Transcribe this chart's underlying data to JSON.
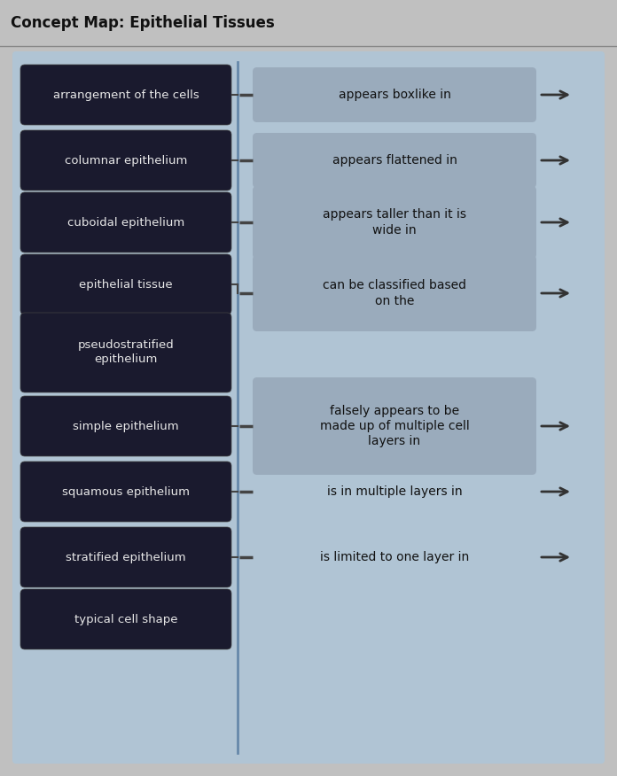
{
  "title": "Concept Map: Epithelial Tissues",
  "title_fontsize": 12,
  "title_fontweight": "bold",
  "bg_outer": "#c0c0c0",
  "bg_inner": "#b0c4d4",
  "left_box_bg_dark": "#1a1a2e",
  "left_box_bg_mid": "#2a3a4a",
  "left_box_text": "#e8e8e8",
  "right_box_bg": "#9aabbc",
  "right_box_text": "#111111",
  "connector_color": "#444444",
  "arrow_color": "#333333",
  "divider_color": "#6688aa",
  "left_items": [
    "arrangement of the cells",
    "columnar epithelium",
    "cuboidal epithelium",
    "epithelial tissue",
    "pseudostratified\nepithelium",
    "simple epithelium",
    "squamous epithelium",
    "stratified epithelium",
    "typical cell shape"
  ],
  "left_item_two_line": [
    false,
    false,
    false,
    false,
    true,
    false,
    false,
    false,
    false
  ],
  "right_items": [
    "appears boxlike in",
    "appears flattened in",
    "appears taller than it is\nwide in",
    "can be classified based\non the",
    "falsely appears to be\nmade up of multiple cell\nlayers in",
    "is in multiple layers in",
    "is limited to one layer in"
  ],
  "right_has_box": [
    true,
    true,
    true,
    true,
    true,
    false,
    false
  ],
  "connector_left_indices": [
    0,
    1,
    2,
    3,
    5,
    6,
    7
  ],
  "connector_right_indices": [
    0,
    1,
    2,
    3,
    4,
    5,
    6
  ]
}
